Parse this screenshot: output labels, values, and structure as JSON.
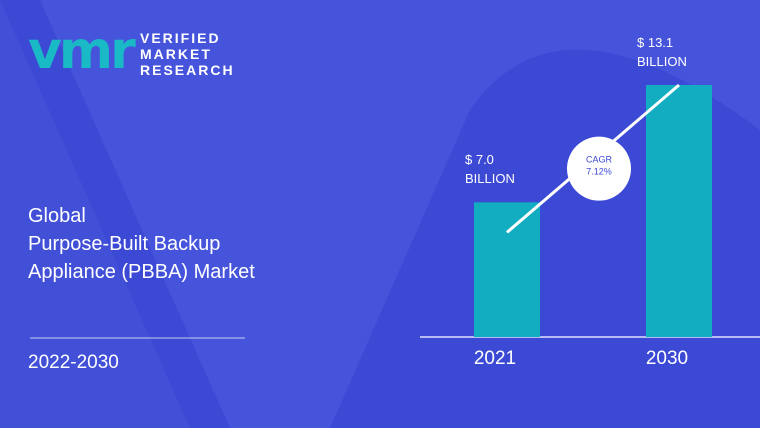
{
  "logo": {
    "mark": "vmr",
    "lines": [
      "VERIFIED",
      "MARKET",
      "RESEARCH"
    ]
  },
  "chart_data": {
    "type": "bar",
    "title": [
      "Global",
      "Purpose-Built Backup",
      "Appliance (PBBA) Market"
    ],
    "period": "2022-2030",
    "categories": [
      "2021",
      "2030"
    ],
    "values": [
      7.0,
      13.1
    ],
    "value_labels": [
      "$ 7.0 BILLION",
      "$ 13.1 BILLION"
    ],
    "color": "#12adc0",
    "annotation": {
      "label": "CAGR",
      "value": "7.12%"
    }
  }
}
